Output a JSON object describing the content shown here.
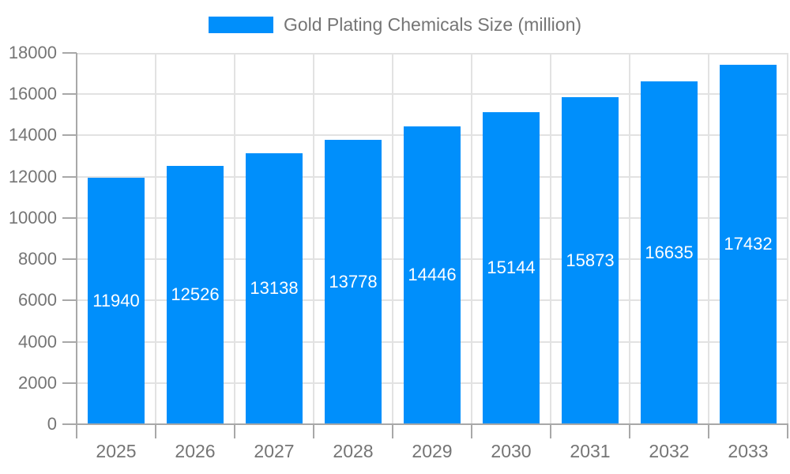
{
  "chart_data": {
    "type": "bar",
    "title": "Gold Plating Chemicals Size (million)",
    "categories": [
      "2025",
      "2026",
      "2027",
      "2028",
      "2029",
      "2030",
      "2031",
      "2032",
      "2033"
    ],
    "values": [
      11940,
      12526,
      13138,
      13778,
      14446,
      15144,
      15873,
      16635,
      17432
    ],
    "xlabel": "",
    "ylabel": "",
    "ylim": [
      0,
      18000
    ],
    "yticks": [
      0,
      2000,
      4000,
      6000,
      8000,
      10000,
      12000,
      14000,
      16000,
      18000
    ],
    "grid": true,
    "legend_position": "top-center",
    "value_labels_position": "inside-middle",
    "colors": {
      "bar": "#008FFB",
      "grid": "#e2e2e2",
      "axis": "#a8a8a8",
      "text": "#757575",
      "value_label": "#ffffff",
      "background": "#ffffff"
    }
  }
}
